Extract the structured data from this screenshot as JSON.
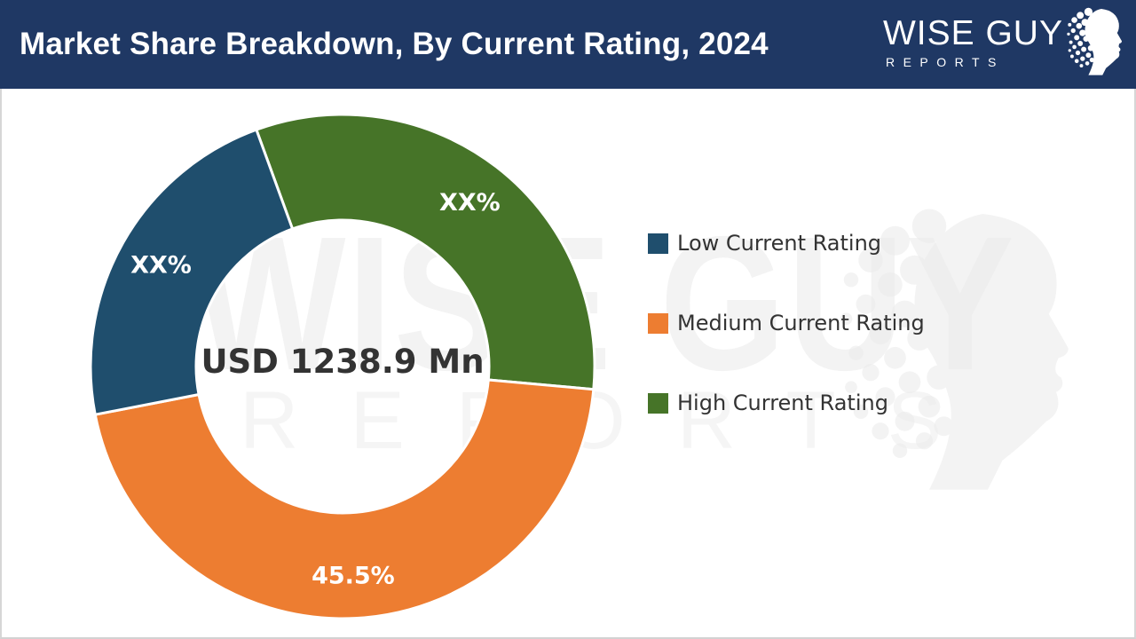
{
  "header": {
    "title": "Market Share Breakdown, By Current Rating, 2024",
    "logo": {
      "name": "WISE GUY",
      "sub": "REPORTS"
    }
  },
  "colors": {
    "header_bg": "#1f3864",
    "low": "#1f4e6d",
    "medium": "#ed7d31",
    "high": "#467428",
    "center_text": "#333333",
    "legend_text": "#333333"
  },
  "chart_data": {
    "type": "pie",
    "subtype": "donut",
    "title": "Market Share Breakdown, By Current Rating, 2024",
    "center_label": "USD 1238.9 Mn",
    "start_angle_deg_cw_from_top": -20,
    "segments_clockwise": [
      {
        "name": "High Current Rating",
        "value_pct": 32.0,
        "data_label": "XX%",
        "color": "#467428"
      },
      {
        "name": "Medium Current Rating",
        "value_pct": 45.5,
        "data_label": "45.5%",
        "color": "#ed7d31"
      },
      {
        "name": "Low Current Rating",
        "value_pct": 22.5,
        "data_label": "XX%",
        "color": "#1f4e6d"
      }
    ],
    "legend": [
      {
        "label": "Low Current Rating",
        "color": "#1f4e6d"
      },
      {
        "label": "Medium Current Rating",
        "color": "#ed7d31"
      },
      {
        "label": "High Current Rating",
        "color": "#467428"
      }
    ],
    "legend_position": "right"
  },
  "watermark": {
    "line1": "WISE GUY",
    "line2": "REPORTS"
  }
}
